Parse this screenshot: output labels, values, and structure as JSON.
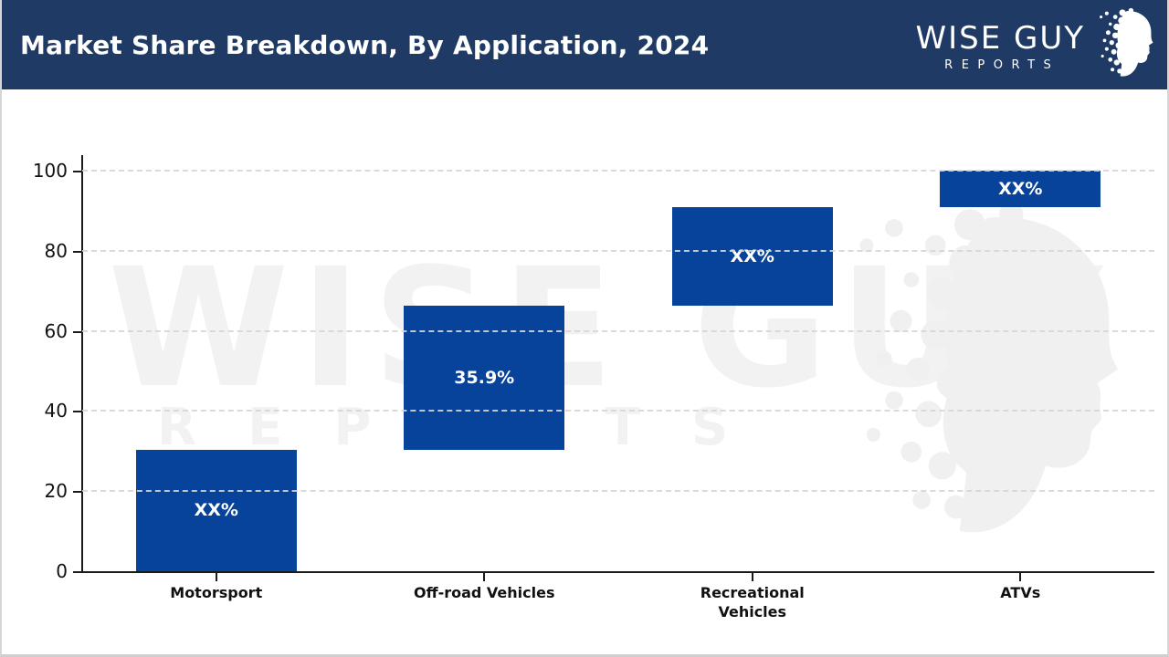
{
  "header": {
    "title": "Market Share Breakdown, By Application, 2024",
    "logo": {
      "line1": "WISE GUY",
      "line2": "REPORTS",
      "face_icon": "dotted-head-profile"
    }
  },
  "watermark": {
    "line1": "WISE GUY",
    "line2": "REPORTS",
    "face_icon": "dotted-head-profile"
  },
  "colors": {
    "header_bg": "#1f3a64",
    "header_text": "#ffffff",
    "bar": "#07429b",
    "bar_label": "#ffffff",
    "axis": "#1a1a1a",
    "gridline": "#d6d6d6",
    "watermark": "#f2f2f2",
    "background": "#ffffff"
  },
  "chart_data": {
    "type": "bar",
    "subtype": "waterfall",
    "title": "Market Share Breakdown, By Application, 2024",
    "categories": [
      "Motorsport",
      "Off-road Vehicles",
      "Recreational\nVehicles",
      "ATVs"
    ],
    "segments": [
      {
        "category": "Motorsport",
        "start": 0,
        "end": 30.3,
        "size": 30.3,
        "label": "XX%"
      },
      {
        "category": "Off-road Vehicles",
        "start": 30.3,
        "end": 66.2,
        "size": 35.9,
        "label": "35.9%"
      },
      {
        "category": "Recreational Vehicles",
        "start": 66.2,
        "end": 90.8,
        "size": 24.6,
        "label": "XX%"
      },
      {
        "category": "ATVs",
        "start": 90.8,
        "end": 100,
        "size": 9.2,
        "label": "XX%"
      }
    ],
    "yticks": [
      0,
      20,
      40,
      60,
      80,
      100
    ],
    "ylim": [
      0,
      100
    ],
    "xlabel": "",
    "ylabel": "",
    "grid": "horizontal-dashed",
    "legend": "none",
    "bar_color": "#07429b"
  }
}
